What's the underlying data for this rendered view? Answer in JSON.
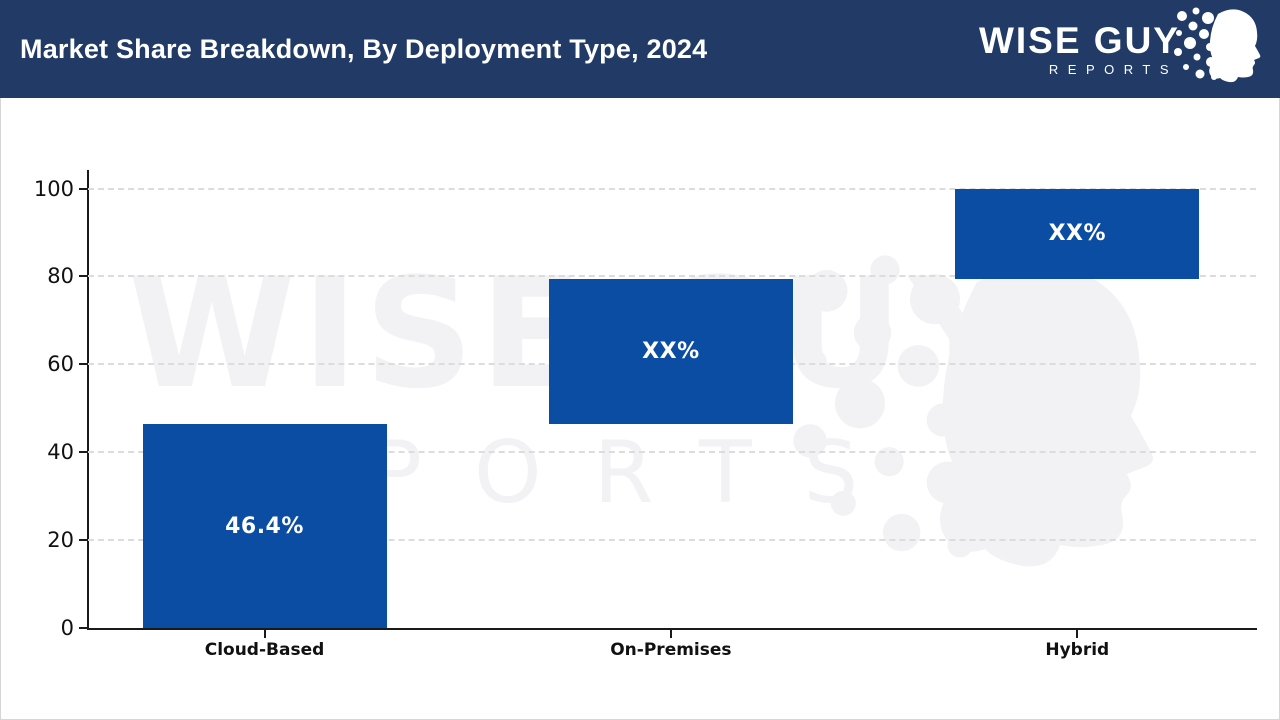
{
  "header": {
    "title": "Market Share Breakdown, By Deployment Type, 2024",
    "logo": {
      "line1": "WISE GUY",
      "line2": "REPORTS"
    }
  },
  "watermark": {
    "line1": "WISE GUY",
    "line2": "REPORTS"
  },
  "colors": {
    "header_bg": "#213a66",
    "bar": "#0b4da2",
    "grid": "#dcdcdc",
    "axis": "#1a1a1a",
    "watermark": "#f2f2f5"
  },
  "chart_data": {
    "type": "bar",
    "subtype": "waterfall",
    "title": "Market Share Breakdown, By Deployment Type, 2024",
    "categories": [
      "Cloud-Based",
      "On-Premises",
      "Hybrid"
    ],
    "segments": [
      {
        "category": "Cloud-Based",
        "start": 0,
        "end": 46.4,
        "label": "46.4%"
      },
      {
        "category": "On-Premises",
        "start": 46.4,
        "end": 79.3,
        "label": "XX%"
      },
      {
        "category": "Hybrid",
        "start": 79.3,
        "end": 100,
        "label": "XX%"
      }
    ],
    "ylim": [
      0,
      100
    ],
    "yticks": [
      0,
      20,
      40,
      60,
      80,
      100
    ],
    "xlabel": "",
    "ylabel": "",
    "grid": "horizontal-dashed",
    "legend": "none",
    "bar_color": "#0b4da2"
  }
}
